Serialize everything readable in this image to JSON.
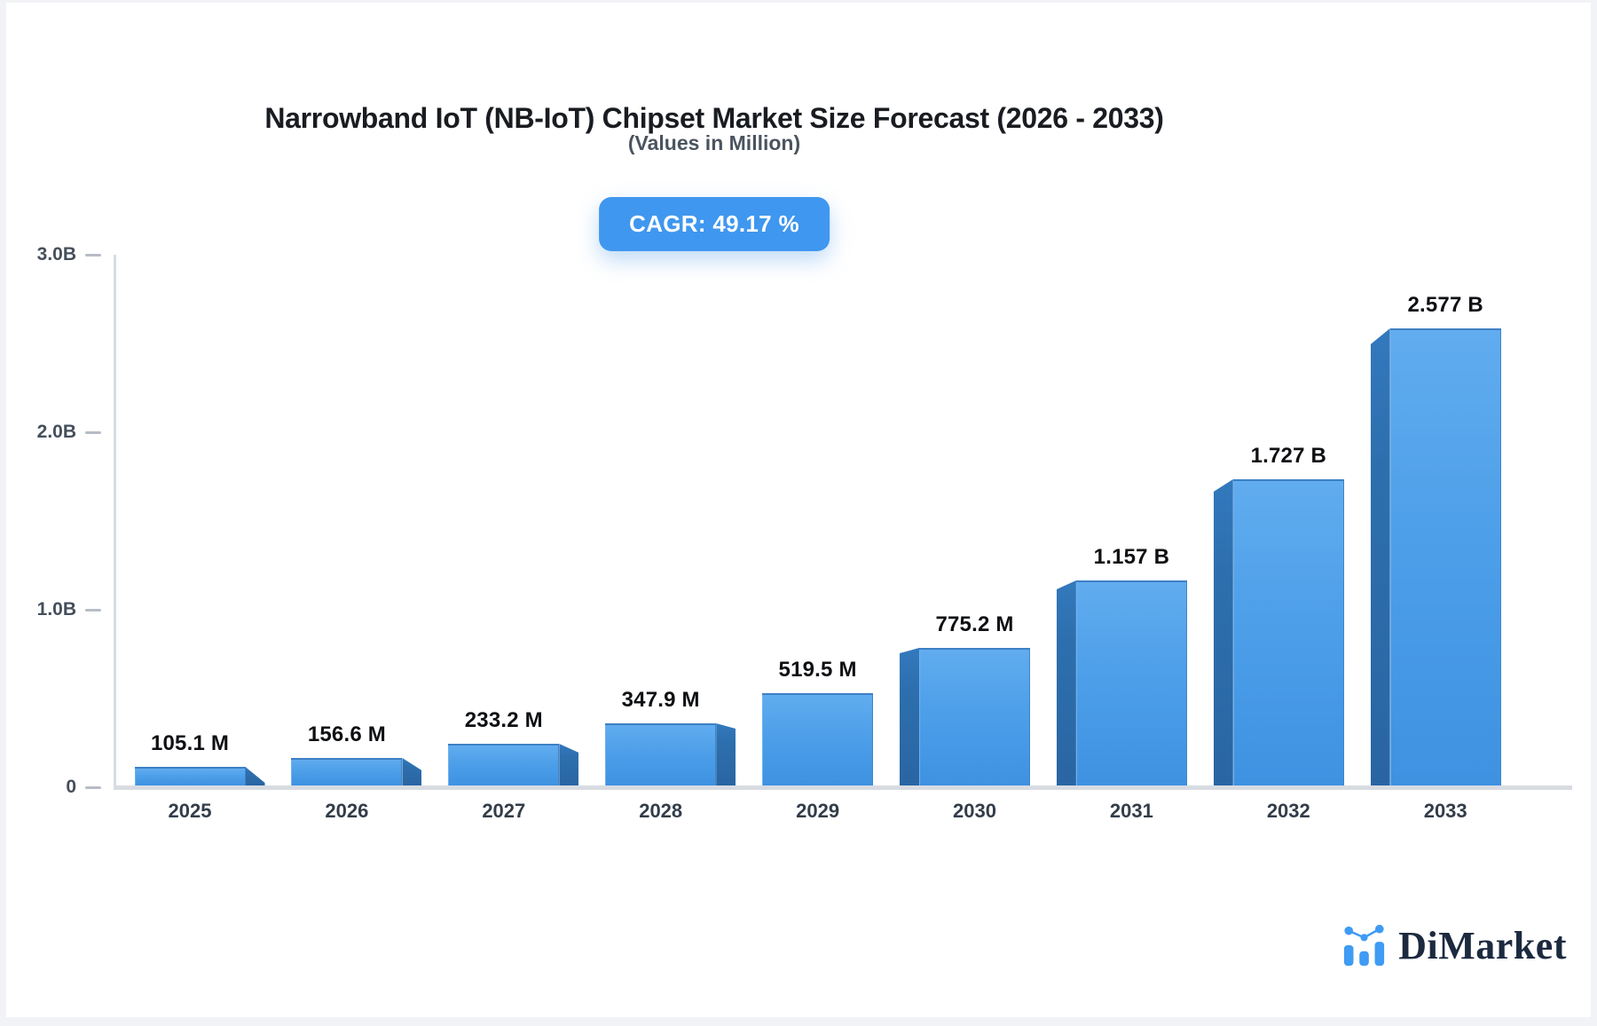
{
  "header": {
    "title": "Narrowband IoT (NB-IoT) Chipset Market Size Forecast (2026 - 2033)",
    "subtitle": "(Values in Million)",
    "cagr_label": "CAGR: 49.17 %"
  },
  "brand": {
    "name": "DiMarket",
    "icon": "bar-line-chart-icon",
    "icon_color": "#3f9bf4",
    "text_color": "#1c2a40"
  },
  "colors": {
    "bar_face_top": "#61acef",
    "bar_face_bottom": "#3e92e1",
    "bar_side": "#2d6fae",
    "badge_bg": "#3f97ef",
    "axis_gray": "#d8dce2",
    "tick_text": "#454f5b",
    "label_text": "#0e1013"
  },
  "chart_data": {
    "type": "bar",
    "title": "Narrowband IoT (NB-IoT) Chipset Market Size Forecast (2026 - 2033)",
    "subtitle": "(Values in Million)",
    "annotation": "CAGR: 49.17 %",
    "categories": [
      "2025",
      "2026",
      "2027",
      "2028",
      "2029",
      "2030",
      "2031",
      "2032",
      "2033"
    ],
    "values_millions": [
      105.1,
      156.6,
      233.2,
      347.9,
      519.5,
      775.2,
      1157,
      1727,
      2577
    ],
    "value_labels": [
      "105.1 M",
      "156.6 M",
      "233.2 M",
      "347.9 M",
      "519.5 M",
      "775.2 M",
      "1.157 B",
      "1.727 B",
      "2.577 B"
    ],
    "xlabel": "",
    "ylabel": "",
    "ylim": [
      0,
      3000
    ],
    "y_ticks_millions": [
      0,
      1000,
      2000,
      3000
    ],
    "y_tick_labels": [
      "0",
      "1.0B",
      "2.0B",
      "3.0B"
    ],
    "grid": false,
    "legend_position": "none",
    "style": "3d-perspective-bars"
  }
}
